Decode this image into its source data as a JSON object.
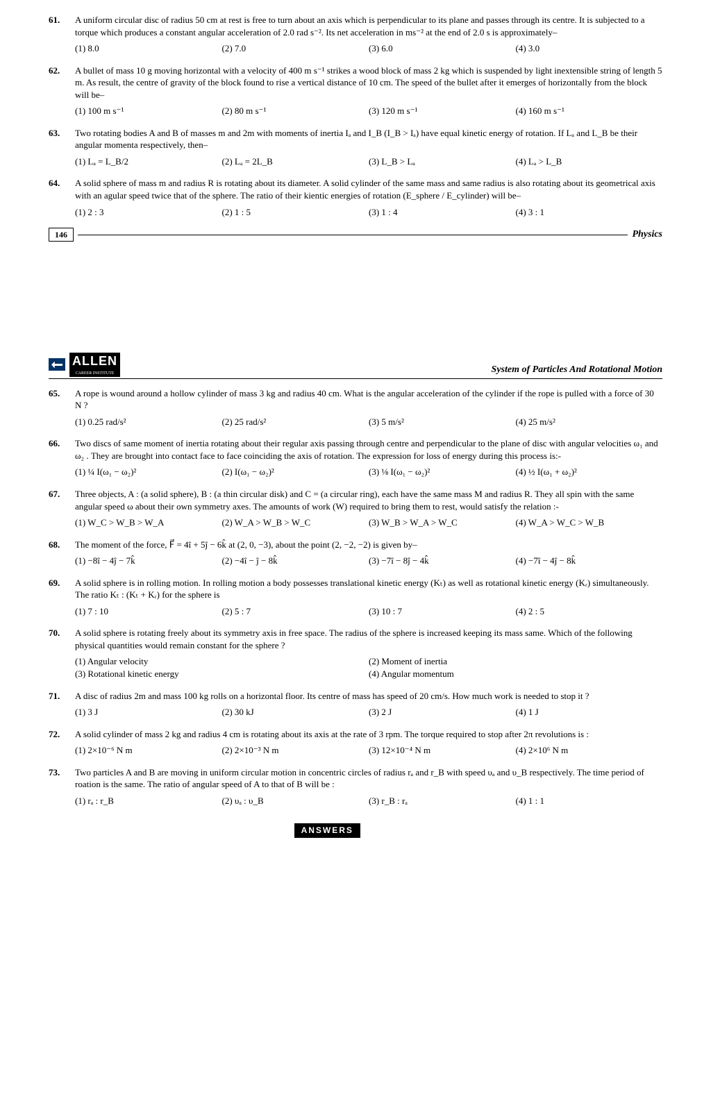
{
  "page1": {
    "questions": [
      {
        "num": "61.",
        "text": "A uniform circular disc of radius 50 cm at rest is free to turn about an axis which is perpendicular to its plane and passes through its centre. It is subjected to a torque which produces a constant angular acceleration of 2.0 rad s⁻². Its net acceleration in ms⁻² at the end of 2.0 s is approximately–",
        "opts": [
          "(1) 8.0",
          "(2) 7.0",
          "(3) 6.0",
          "(4) 3.0"
        ]
      },
      {
        "num": "62.",
        "text": "A bullet of mass 10 g moving horizontal with a velocity of 400 m s⁻¹ strikes a wood block of mass 2 kg which is suspended by light inextensible string of length 5 m. As result, the centre of gravity of the block found to rise a vertical distance of 10 cm. The speed of the bullet after it emerges of horizontally from the block will be–",
        "opts": [
          "(1) 100 m s⁻¹",
          "(2) 80 m s⁻¹",
          "(3) 120 m s⁻¹",
          "(4) 160 m s⁻¹"
        ]
      },
      {
        "num": "63.",
        "text": "Two rotating bodies A and B of masses m and 2m with moments of inertia Iₐ and I_B (I_B > Iₐ) have equal kinetic energy of rotation. If Lₐ and L_B be their angular momenta respectively, then–",
        "opts": [
          "(1) Lₐ = L_B/2",
          "(2) Lₐ = 2L_B",
          "(3) L_B > Lₐ",
          "(4) Lₐ > L_B"
        ]
      },
      {
        "num": "64.",
        "text": "A solid sphere of mass m and radius R is rotating about its diameter. A solid cylinder of the same mass and same radius is also rotating about its geometrical axis with an agular speed twice that of the sphere. The ratio of their kientic energies of rotation (E_sphere / E_cylinder) will be–",
        "opts": [
          "(1) 2 : 3",
          "(2) 1 : 5",
          "(3) 1 : 4",
          "(4) 3 : 1"
        ]
      }
    ],
    "pageNum": "146",
    "footerLabel": "Physics"
  },
  "page2": {
    "sectionTitle": "System of Particles And Rotational Motion",
    "logoText": "ALLEN",
    "logoSub": "CAREER INSTITUTE",
    "questions": [
      {
        "num": "65.",
        "text": "A rope is wound around a hollow cylinder of mass 3 kg and radius 40 cm. What is the angular acceleration of the cylinder if the rope is pulled with a force of 30 N ?",
        "opts": [
          "(1) 0.25 rad/s²",
          "(2) 25 rad/s²",
          "(3) 5 m/s²",
          "(4) 25 m/s²"
        ]
      },
      {
        "num": "66.",
        "text": "Two discs of same moment of inertia rotating about their regular axis passing through centre and perpendicular to the plane of disc with angular velocities ω₁ and ω₂ . They are brought into contact face to face coinciding the axis of rotation. The expression for loss of energy during this process is:-",
        "opts": [
          "(1) ¼ I(ω₁ − ω₂)²",
          "(2) I(ω₁ − ω₂)²",
          "(3) ⅛ I(ω₁ − ω₂)²",
          "(4) ½ I(ω₁ + ω₂)²"
        ]
      },
      {
        "num": "67.",
        "text": "Three objects, A : (a solid sphere), B : (a thin circular disk) and C = (a circular ring), each have the same mass M and radius R. They all spin with the same angular speed ω about their own symmetry axes. The amounts of work (W) required to bring them to rest, would satisfy the relation :-",
        "opts": [
          "(1) W_C > W_B > W_A",
          "(2) W_A > W_B > W_C",
          "(3) W_B > W_A > W_C",
          "(4) W_A > W_C > W_B"
        ]
      },
      {
        "num": "68.",
        "text": "The moment of the force, F⃗ = 4î + 5ĵ − 6k̂ at (2, 0, −3), about the point (2, −2, −2) is given by–",
        "opts": [
          "(1) −8î − 4ĵ − 7k̂",
          "(2) −4î − ĵ − 8k̂",
          "(3) −7î − 8ĵ − 4k̂",
          "(4) −7î − 4ĵ − 8k̂"
        ]
      },
      {
        "num": "69.",
        "text": "A solid sphere is in rolling motion. In rolling motion a body possesses translational kinetic energy (Kₜ) as well as rotational kinetic energy (Kᵣ) simultaneously. The ratio Kₜ : (Kₜ + Kᵣ) for the sphere is",
        "opts": [
          "(1) 7 : 10",
          "(2) 5 : 7",
          "(3) 10 : 7",
          "(4) 2 : 5"
        ]
      },
      {
        "num": "70.",
        "text": "A solid sphere is rotating freely about its symmetry axis in free space. The radius of the sphere is increased keeping its mass same. Which of the following physical quantities would remain constant for the sphere ?",
        "opts": [
          "(1) Angular velocity",
          "(2) Moment of inertia",
          "(3) Rotational kinetic energy",
          "(4) Angular momentum"
        ],
        "layout": "two"
      },
      {
        "num": "71.",
        "text": "A disc of radius 2m and mass 100 kg rolls on a horizontal floor. Its centre of mass has speed of 20 cm/s. How much work is needed to stop it ?",
        "opts": [
          "(1) 3 J",
          "(2) 30 kJ",
          "(3) 2 J",
          "(4) 1 J"
        ]
      },
      {
        "num": "72.",
        "text": "A solid cylinder of mass 2 kg and radius 4 cm is rotating about its axis at the rate of 3 rpm. The torque required to stop after 2π revolutions is :",
        "opts": [
          "(1) 2×10⁻⁶ N m",
          "(2) 2×10⁻³ N m",
          "(3) 12×10⁻⁴ N m",
          "(4) 2×10⁶ N m"
        ]
      },
      {
        "num": "73.",
        "text": "Two particles A and B are moving in uniform circular motion in concentric circles of radius rₐ and r_B with speed υₐ and υ_B respectively. The time period of roation is the same. The ratio of angular speed of A to that of B will be :",
        "opts": [
          "(1) rₐ : r_B",
          "(2) υₐ : υ_B",
          "(3) r_B : rₐ",
          "(4) 1 : 1"
        ]
      }
    ],
    "answersLabel": "ANSWERS"
  }
}
